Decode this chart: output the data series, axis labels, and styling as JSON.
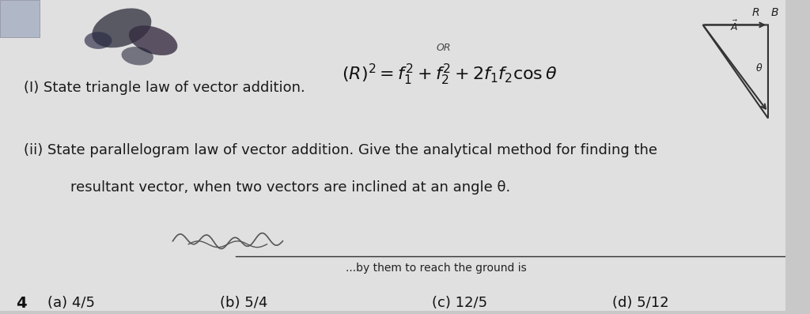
{
  "bg_color": "#c8c8c8",
  "paper_color": "#e0e0e0",
  "text_color": "#1a1a1a",
  "line1_label": "(I) State triangle law of vector addition.",
  "line1_or": "OR",
  "line2_label": "(ii) State parallelogram law of vector addition. Give the analytical method for finding the",
  "line3_label": "resultant vector, when two vectors are inclined at an angle θ.",
  "bottom_partial": "...by them to reach the ground is",
  "opt_a": "(a) 4/5",
  "opt_b": "(b) 5/4",
  "opt_c": "(c) 12/5",
  "opt_d": "(d) 5/12",
  "num_label": "4",
  "font_size_main": 13,
  "font_size_formula": 16,
  "font_size_opts": 13
}
